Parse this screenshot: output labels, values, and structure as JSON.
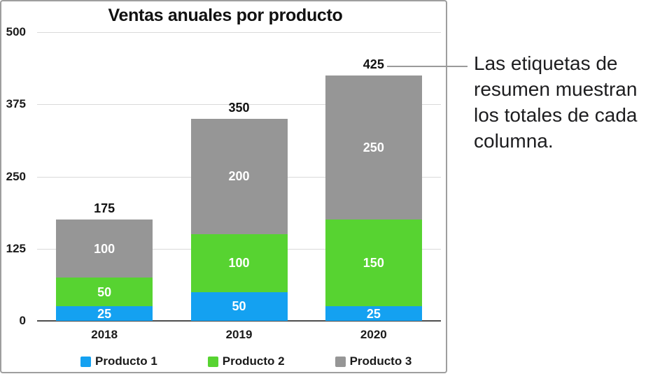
{
  "chart_data": {
    "type": "bar",
    "stacked": true,
    "title": "Ventas anuales por producto",
    "categories": [
      "2018",
      "2019",
      "2020"
    ],
    "series": [
      {
        "name": "Producto 1",
        "color": "#14a1f1",
        "values": [
          25,
          50,
          25
        ]
      },
      {
        "name": "Producto 2",
        "color": "#57d331",
        "values": [
          50,
          100,
          150
        ]
      },
      {
        "name": "Producto 3",
        "color": "#969696",
        "values": [
          100,
          200,
          250
        ]
      }
    ],
    "totals": [
      175,
      350,
      425
    ],
    "xlabel": "",
    "ylabel": "",
    "yticks": [
      0,
      125,
      250,
      375,
      500
    ],
    "ylim": [
      0,
      500
    ],
    "grid": true,
    "legend_position": "bottom",
    "value_labels_inside_segments": true,
    "total_labels_above_columns": true
  },
  "annotation": {
    "lines": [
      "Las etiquetas de",
      "resumen muestran",
      "los totales de cada",
      "columna."
    ]
  },
  "colors": {
    "grid": "#d9d9d9",
    "axis": "#4d4d4d",
    "frame_border": "#9e9e9e",
    "callout_line": "#9a9a9a",
    "segment_label_text": "#ffffff",
    "text": "#1a1a1a"
  }
}
